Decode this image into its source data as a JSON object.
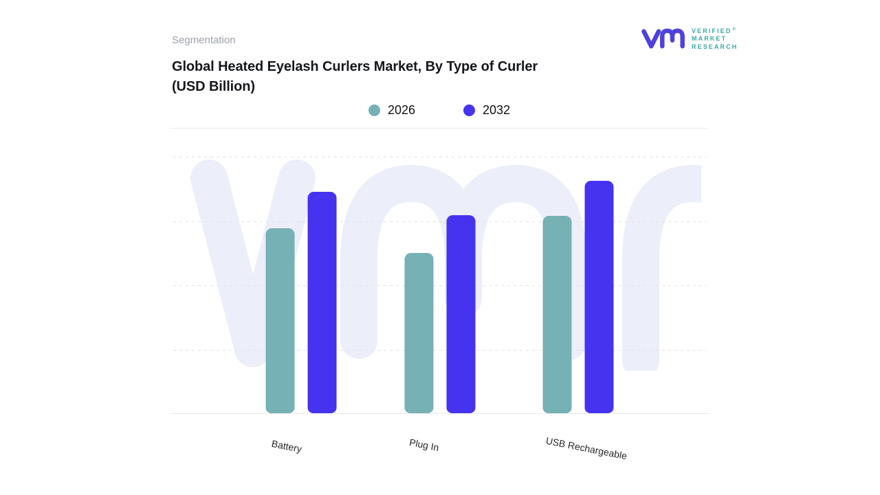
{
  "header": {
    "eyebrow": "Segmentation",
    "title_lines": [
      "Global Heated Eyelash Curlers Market, By Type of Curler",
      "(USD Billion)"
    ]
  },
  "logo": {
    "mark": "vmr-monogram",
    "mark_color": "#4e41dd",
    "text_color": "#3aa7a3",
    "lines": [
      "VERIFIED",
      "MARKET",
      "RESEARCH"
    ],
    "registered_mark": "®"
  },
  "legend": {
    "items": [
      {
        "label": "2026",
        "color": "#75b1b5"
      },
      {
        "label": "2032",
        "color": "#4533f0"
      }
    ]
  },
  "watermark_text": "vmr",
  "colors": {
    "series_2026": "#75b1b5",
    "series_2032": "#4533f0",
    "watermark": "#eceef9",
    "gridline": "#e2e2e7",
    "title_text": "#15171c",
    "eyebrow_text": "#9aa0a8"
  },
  "chart_data": {
    "type": "bar",
    "title": "Global Heated Eyelash Curlers Market, By Type of Curler (USD Billion)",
    "ylabel": "USD Billion",
    "categories": [
      "Battery",
      "Plug In",
      "USB Rechargeable"
    ],
    "series": [
      {
        "name": "2026",
        "color": "#75b1b5",
        "values": [
          2.88,
          2.5,
          3.08
        ]
      },
      {
        "name": "2032",
        "color": "#4533f0",
        "values": [
          3.45,
          3.09,
          3.63
        ]
      }
    ],
    "ylim": [
      0,
      4
    ],
    "y_tick_labels_visible": false,
    "grid": "horizontal-dashed",
    "legend_position": "top-center",
    "bar_corner_radius": 9
  }
}
